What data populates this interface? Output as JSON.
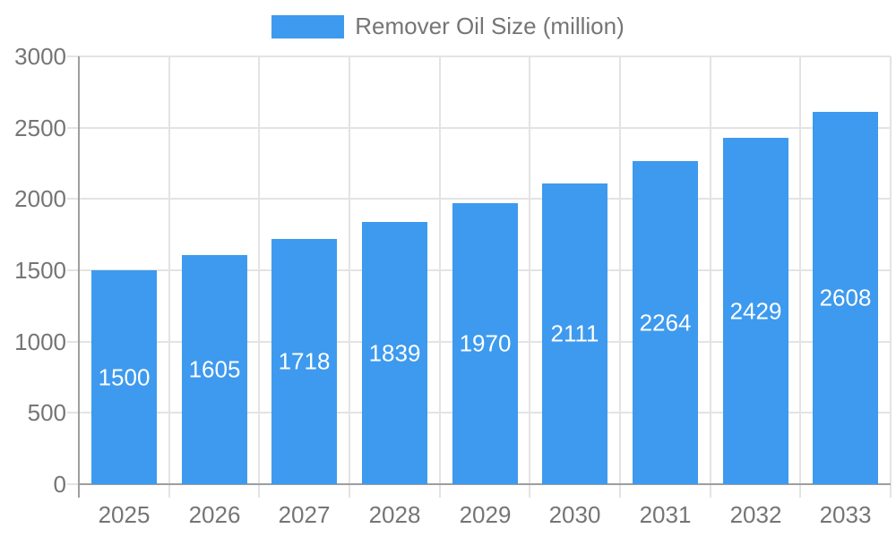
{
  "chart_data": {
    "type": "bar",
    "title": "Remover Oil Size (million)",
    "categories": [
      "2025",
      "2026",
      "2027",
      "2028",
      "2029",
      "2030",
      "2031",
      "2032",
      "2033"
    ],
    "values": [
      1500,
      1605,
      1718,
      1839,
      1970,
      2111,
      2264,
      2429,
      2608
    ],
    "series": [
      {
        "name": "Remover Oil Size (million)",
        "values": [
          1500,
          1605,
          1718,
          1839,
          1970,
          2111,
          2264,
          2429,
          2608
        ]
      }
    ],
    "xlabel": "",
    "ylabel": "",
    "ylim": [
      0,
      3000
    ],
    "ytick_step": 500,
    "ytick_labels": [
      "0",
      "500",
      "1000",
      "1500",
      "2000",
      "2500",
      "3000"
    ],
    "grid": true,
    "legend_position": "top",
    "value_labels_shown": true,
    "colors": {
      "bar": "#3d9aee",
      "value_label": "#ffffff",
      "axis_text": "#757575",
      "gridline": "#e3e3e3",
      "axis_line": "#9e9e9e",
      "background": "#ffffff"
    }
  },
  "legend": {
    "label": "Remover Oil Size (million)"
  }
}
